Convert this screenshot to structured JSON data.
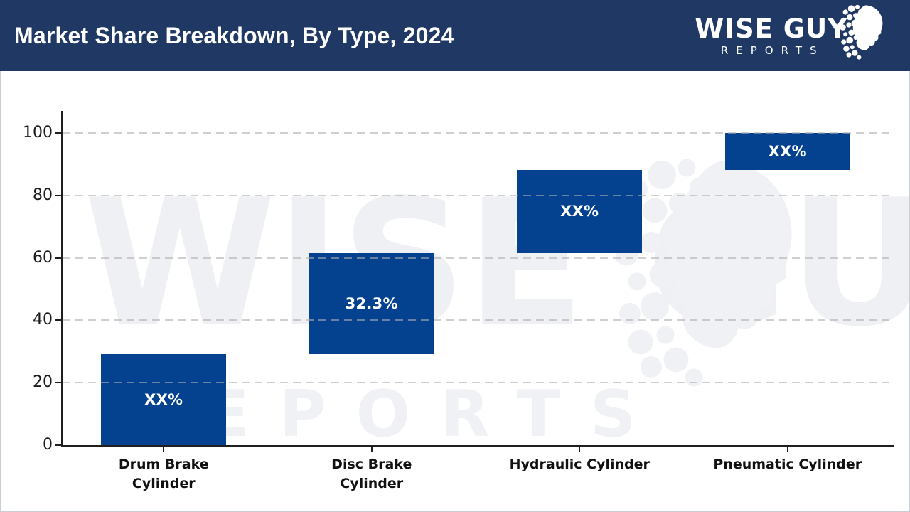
{
  "header": {
    "title": "Market Share Breakdown, By Type, 2024",
    "logo": {
      "wordmark": "WISE GUY",
      "subtext": "REPORTS"
    }
  },
  "watermark": {
    "wordmark": "WISE GUY",
    "subtext": "REPORTS"
  },
  "colors": {
    "header_bg": "#203864",
    "bar": "#04418f",
    "bar_label": "#ffffff",
    "axis": "#1f1f1f",
    "gridline": "rgba(175,175,175,0.6)",
    "watermark": "#f0f1f4"
  },
  "chart_data": {
    "type": "bar",
    "variant": "waterfall",
    "title": "Market Share Breakdown, By Type, 2024",
    "xlabel": "",
    "ylabel": "",
    "categories": [
      "Drum Brake\nCylinder",
      "Disc Brake\nCylinder",
      "Hydraulic Cylinder",
      "Pneumatic Cylinder"
    ],
    "bars": [
      {
        "category": "Drum Brake Cylinder",
        "start": 0,
        "end": 29.2,
        "label": "XX%"
      },
      {
        "category": "Disc Brake Cylinder",
        "start": 29.2,
        "end": 61.5,
        "label": "32.3%"
      },
      {
        "category": "Hydraulic Cylinder",
        "start": 61.5,
        "end": 88.2,
        "label": "XX%"
      },
      {
        "category": "Pneumatic Cylinder",
        "start": 88.2,
        "end": 100,
        "label": "XX%"
      }
    ],
    "yticks": [
      0,
      20,
      40,
      60,
      80,
      100
    ],
    "ylim": [
      0,
      106
    ],
    "grid": "horizontal dashed, drawn over bars",
    "legend": "none"
  }
}
